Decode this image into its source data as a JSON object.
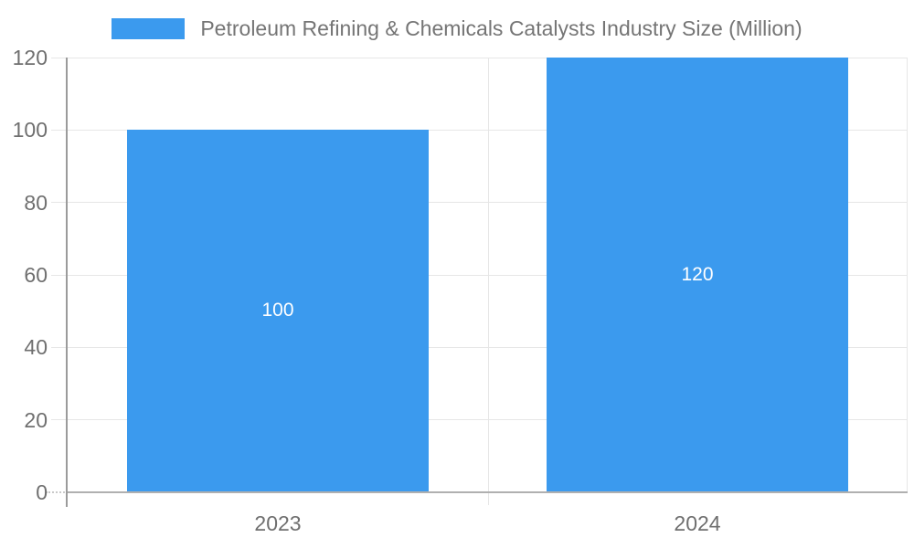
{
  "chart_data": {
    "type": "bar",
    "title": "Petroleum Refining & Chemicals Catalysts Industry Size (Million)",
    "categories": [
      "2023",
      "2024"
    ],
    "values": [
      100,
      120
    ],
    "series": [
      {
        "name": "Petroleum Refining & Chemicals Catalysts Industry Size (Million)",
        "values": [
          100,
          120
        ]
      }
    ],
    "bar_labels": [
      "100",
      "120"
    ],
    "xlabel": "",
    "ylabel": "",
    "ylim": [
      0,
      120
    ],
    "yticks": [
      0,
      20,
      40,
      60,
      80,
      100,
      120
    ],
    "grid": true,
    "legend_position": "top-center",
    "colors": {
      "bar": "#3B9AEE",
      "bar_label_text": "#FFFFFF",
      "axis_label_text": "#6F6F6F",
      "legend_text": "#757575",
      "gridline": "#E6E6E6",
      "axis_line": "#9B9B9B",
      "baseline": "#B0B0B0",
      "background": "#FFFFFF"
    }
  }
}
